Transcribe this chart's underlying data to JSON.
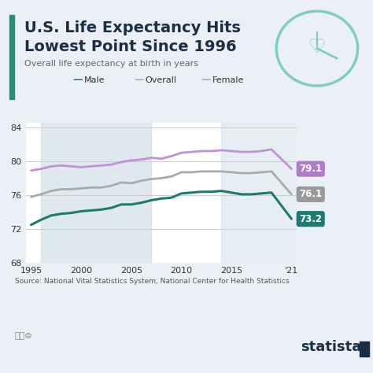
{
  "title_line1": "U.S. Life Expectancy Hits",
  "title_line2": "Lowest Point Since 1996",
  "subtitle": "Overall life expectancy at birth in years",
  "source": "Source: National Vital Statistics System, National Center for Health Statistics",
  "bg_color": "#eaf0f5",
  "plot_bg_color": "#ffffff",
  "shade_color": "#d0dfe8",
  "title_color": "#1a2e44",
  "accent_bar_color": "#2e8b78",
  "years": [
    1995,
    1996,
    1997,
    1998,
    1999,
    2000,
    2001,
    2002,
    2003,
    2004,
    2005,
    2006,
    2007,
    2008,
    2009,
    2010,
    2011,
    2012,
    2013,
    2014,
    2015,
    2016,
    2017,
    2018,
    2019,
    2021
  ],
  "male": [
    72.5,
    73.1,
    73.6,
    73.8,
    73.9,
    74.1,
    74.2,
    74.3,
    74.5,
    74.9,
    74.9,
    75.1,
    75.4,
    75.6,
    75.7,
    76.2,
    76.3,
    76.4,
    76.4,
    76.5,
    76.3,
    76.1,
    76.1,
    76.2,
    76.3,
    73.2
  ],
  "overall": [
    75.8,
    76.1,
    76.5,
    76.7,
    76.7,
    76.8,
    76.9,
    76.9,
    77.1,
    77.5,
    77.4,
    77.7,
    77.9,
    78.0,
    78.2,
    78.7,
    78.7,
    78.8,
    78.8,
    78.8,
    78.7,
    78.6,
    78.6,
    78.7,
    78.8,
    76.1
  ],
  "female": [
    78.9,
    79.1,
    79.4,
    79.5,
    79.4,
    79.3,
    79.4,
    79.5,
    79.6,
    79.9,
    80.1,
    80.2,
    80.4,
    80.3,
    80.6,
    81.0,
    81.1,
    81.2,
    81.2,
    81.3,
    81.2,
    81.1,
    81.1,
    81.2,
    81.4,
    79.1
  ],
  "male_color": "#1d7a6e",
  "overall_color": "#aaaaaa",
  "female_color": "#c090d8",
  "male_badge_color": "#1d7a6e",
  "overall_badge_color": "#999999",
  "female_badge_color": "#b07bc8",
  "male_end_label": "73.2",
  "overall_end_label": "76.1",
  "female_end_label": "79.1",
  "ylim": [
    68,
    84.5
  ],
  "yticks": [
    68,
    72,
    76,
    80,
    84
  ],
  "shade_xstart": 1996,
  "shade_xend": 2007,
  "xlabel_ticks": [
    1995,
    2000,
    2005,
    2010,
    2015,
    2021
  ],
  "xlabel_labels": [
    "1995",
    "2000",
    "2005",
    "2010",
    "2015",
    "'21"
  ]
}
